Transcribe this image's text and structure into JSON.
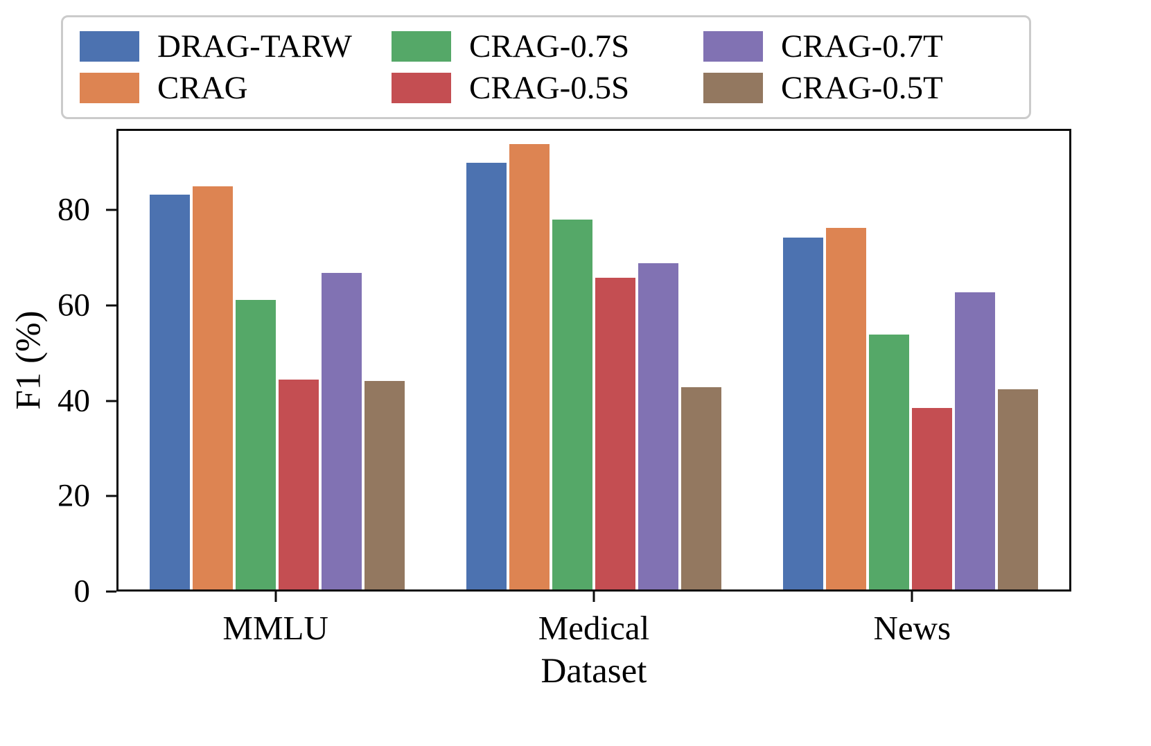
{
  "chart_data": {
    "type": "bar",
    "title": "",
    "xlabel": "Dataset",
    "ylabel": "F1 (%)",
    "categories": [
      "MMLU",
      "Medical",
      "News"
    ],
    "series": [
      {
        "name": "DRAG-TARW",
        "color": "#4c72b0",
        "values": [
          83.5,
          90.2,
          74.5
        ]
      },
      {
        "name": "CRAG",
        "color": "#dd8452",
        "values": [
          85.3,
          94.2,
          76.5
        ]
      },
      {
        "name": "CRAG-0.7S",
        "color": "#55a868",
        "values": [
          61.3,
          78.2,
          53.9
        ]
      },
      {
        "name": "CRAG-0.5S",
        "color": "#c44e52",
        "values": [
          44.4,
          65.9,
          38.4
        ]
      },
      {
        "name": "CRAG-0.7T",
        "color": "#8172b3",
        "values": [
          67.0,
          69.0,
          62.9
        ]
      },
      {
        "name": "CRAG-0.5T",
        "color": "#937860",
        "values": [
          44.1,
          42.8,
          42.4
        ]
      }
    ],
    "ylim": [
      0,
      97
    ],
    "yticks": [
      0,
      20,
      40,
      60,
      80
    ],
    "grid": false,
    "legend_position": "top",
    "legend_columns": 3,
    "axis_color": "#0d0d0d"
  }
}
